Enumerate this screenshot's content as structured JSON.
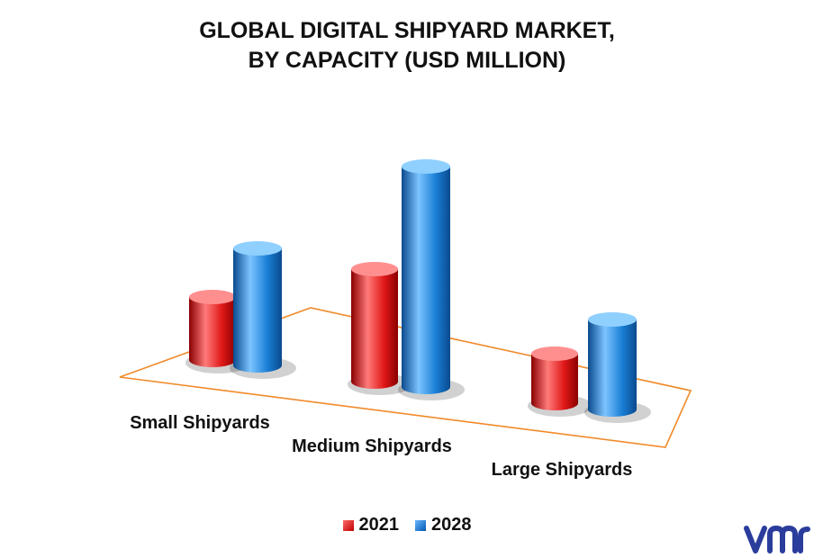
{
  "chart_data": {
    "type": "bar",
    "title_lines": [
      "GLOBAL DIGITAL SHIPYARD MARKET,",
      "BY CAPACITY (USD MILLION)"
    ],
    "categories": [
      "Small Shipyards",
      "Medium Shipyards",
      "Large Shipyards"
    ],
    "series": [
      {
        "name": "2021",
        "values": [
          70,
          125,
          55
        ],
        "color": "#e01818"
      },
      {
        "name": "2028",
        "values": [
          130,
          245,
          100
        ],
        "color": "#1a7fd6"
      }
    ],
    "grid": false,
    "legend_position": "bottom"
  },
  "brand": {
    "logo": "vmr-logo",
    "color": "#2a3d9c"
  }
}
